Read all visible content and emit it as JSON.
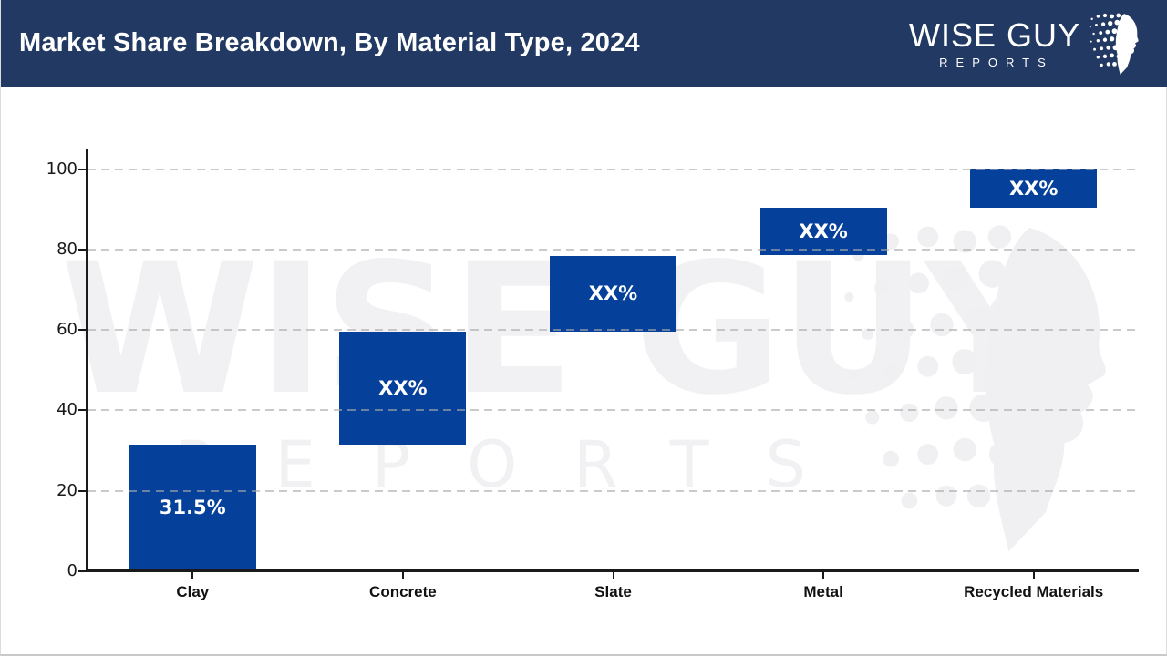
{
  "header": {
    "title": "Market Share Breakdown, By Material Type, 2024",
    "logo": {
      "line1": "WISE GUY",
      "line2": "REPORTS"
    }
  },
  "watermark": {
    "line1": "WISE GUY",
    "line2": "REPORTS"
  },
  "chart_data": {
    "type": "bar",
    "subtype": "waterfall",
    "title": "Market Share Breakdown, By Material Type, 2024",
    "categories": [
      "Clay",
      "Concrete",
      "Slate",
      "Metal",
      "Recycled Materials"
    ],
    "segments": [
      {
        "category": "Clay",
        "start": 0,
        "end": 31.5,
        "value": 31.5,
        "label": "31.5%"
      },
      {
        "category": "Concrete",
        "start": 31.5,
        "end": 59.5,
        "value": 28,
        "label": "XX%"
      },
      {
        "category": "Slate",
        "start": 59.5,
        "end": 78.5,
        "value": 19,
        "label": "XX%"
      },
      {
        "category": "Metal",
        "start": 78.5,
        "end": 90.5,
        "value": 12,
        "label": "XX%"
      },
      {
        "category": "Recycled Materials",
        "start": 90.5,
        "end": 100,
        "value": 9.5,
        "label": "XX%"
      }
    ],
    "y_ticks": [
      0,
      20,
      40,
      60,
      80,
      100
    ],
    "ylim": [
      0,
      105
    ],
    "xlabel": "",
    "ylabel": "",
    "grid": "horizontal-dashed",
    "legend": "none",
    "bar_color": "#05409B",
    "bar_label_color": "#ffffff",
    "axis_color": "#1a1a1a"
  },
  "colors": {
    "header_bg": "#223A63",
    "bar": "#05409B",
    "watermark": "#f1f1f3",
    "grid": "#c8c8c8"
  }
}
